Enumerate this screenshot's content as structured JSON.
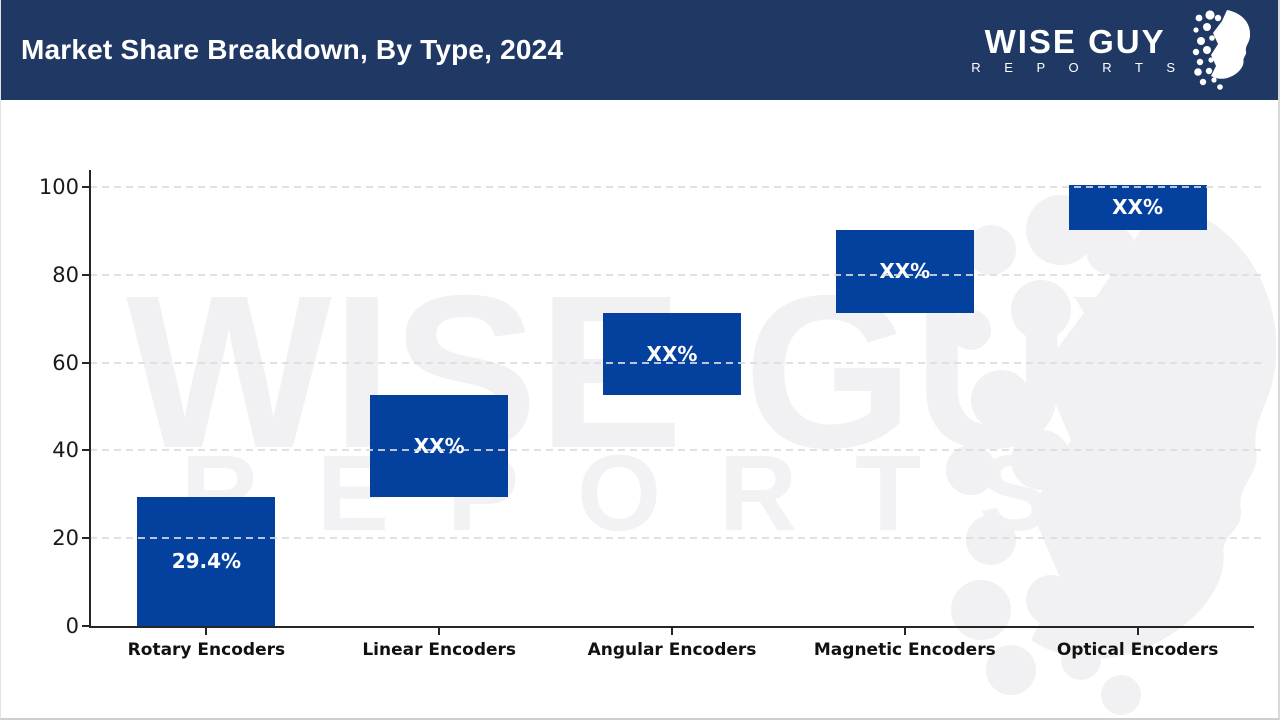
{
  "header": {
    "title": "Market Share Breakdown, By Type, 2024",
    "logo_line1": "WISE GUY",
    "logo_line2": "R E P O R T S",
    "bg_color": "#1f3864"
  },
  "watermark": {
    "line1": "WISE GUY",
    "line2": "REPORTS"
  },
  "chart_data": {
    "type": "bar",
    "subtype": "waterfall",
    "title": "Market Share Breakdown, By Type, 2024",
    "categories": [
      "Rotary Encoders",
      "Linear Encoders",
      "Angular Encoders",
      "Magnetic Encoders",
      "Optical Encoders"
    ],
    "segments": [
      {
        "category": "Rotary Encoders",
        "start": 0,
        "end": 29.4,
        "label": "29.4%"
      },
      {
        "category": "Linear Encoders",
        "start": 29.4,
        "end": 52.6,
        "label": "XX%"
      },
      {
        "category": "Angular Encoders",
        "start": 52.6,
        "end": 71.3,
        "label": "XX%"
      },
      {
        "category": "Magnetic Encoders",
        "start": 71.3,
        "end": 90.3,
        "label": "XX%"
      },
      {
        "category": "Optical Encoders",
        "start": 90.3,
        "end": 100.5,
        "label": "XX%"
      }
    ],
    "xlabel": "",
    "ylabel": "",
    "ylim": [
      0,
      105
    ],
    "yticks": [
      0,
      20,
      40,
      60,
      80,
      100
    ],
    "grid": "horizontal-dashed",
    "legend": "none",
    "bar_color": "#04419e",
    "bar_label_color": "#ffffff",
    "axis_color": "#262626",
    "grid_color": "#dcdcdc",
    "watermark_color": "#f1f1f3"
  }
}
